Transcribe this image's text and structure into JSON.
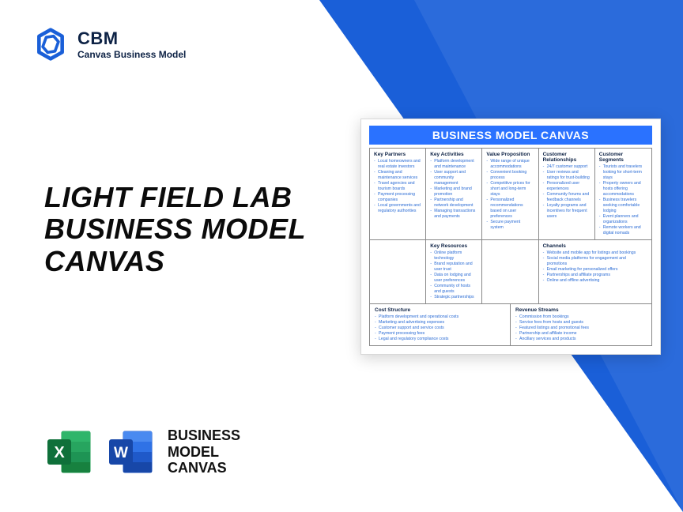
{
  "brand": {
    "abbr": "CBM",
    "sub": "Canvas Business Model",
    "logo_color": "#1a5fd8"
  },
  "title_lines": "LIGHT FIELD LAB BUSINESS MODEL CANVAS",
  "footer": {
    "label_l1": "BUSINESS",
    "label_l2": "MODEL",
    "label_l3": "CANVAS"
  },
  "canvas": {
    "title": "BUSINESS MODEL CANVAS",
    "accent": "#2a72ff",
    "blocks": {
      "key_partners": {
        "h": "Key Partners",
        "items": [
          "Local homeowners and real estate investors",
          "Cleaning and maintenance services",
          "Travel agencies and tourism boards",
          "Payment processing companies",
          "Local governments and regulatory authorities"
        ]
      },
      "key_activities": {
        "h": "Key Activities",
        "items": [
          "Platform development and maintenance",
          "User support and community management",
          "Marketing and brand promotion",
          "Partnership and network development",
          "Managing transactions and payments"
        ]
      },
      "value_prop": {
        "h": "Value Proposition",
        "items": [
          "Wide range of unique accommodations",
          "Convenient booking process",
          "Competitive prices for short and long-term stays",
          "Personalized recommendations based on user preferences",
          "Secure payment system"
        ]
      },
      "cust_rel": {
        "h": "Customer Relationships",
        "items": [
          "24/7 customer support",
          "User reviews and ratings for trust-building",
          "Personalized user experiences",
          "Community forums and feedback channels",
          "Loyalty programs and incentives for frequent users"
        ]
      },
      "cust_seg": {
        "h": "Customer Segments",
        "items": [
          "Tourists and travelers looking for short-term stays",
          "Property owners and hosts offering accommodations",
          "Business travelers seeking comfortable lodging",
          "Event planners and organizations",
          "Remote workers and digital nomads"
        ]
      },
      "key_res": {
        "h": "Key Resources",
        "items": [
          "Online platform technology",
          "Brand reputation and user trust",
          "Data on lodging and user preferences",
          "Community of hosts and guests",
          "Strategic partnerships"
        ]
      },
      "channels": {
        "h": "Channels",
        "items": [
          "Website and mobile app for listings and bookings",
          "Social media platforms for engagement and promotions",
          "Email marketing for personalized offers",
          "Partnerships and affiliate programs",
          "Online and offline advertising"
        ]
      },
      "cost": {
        "h": "Cost Structure",
        "items": [
          "Platform development and operational costs",
          "Marketing and advertising expenses",
          "Customer support and service costs",
          "Payment processing fees",
          "Legal and regulatory compliance costs"
        ]
      },
      "revenue": {
        "h": "Revenue Streams",
        "items": [
          "Commission from bookings",
          "Service fees from hosts and guests",
          "Featured listings and promotional fees",
          "Partnership and affiliate income",
          "Ancillary services and products"
        ]
      }
    }
  }
}
